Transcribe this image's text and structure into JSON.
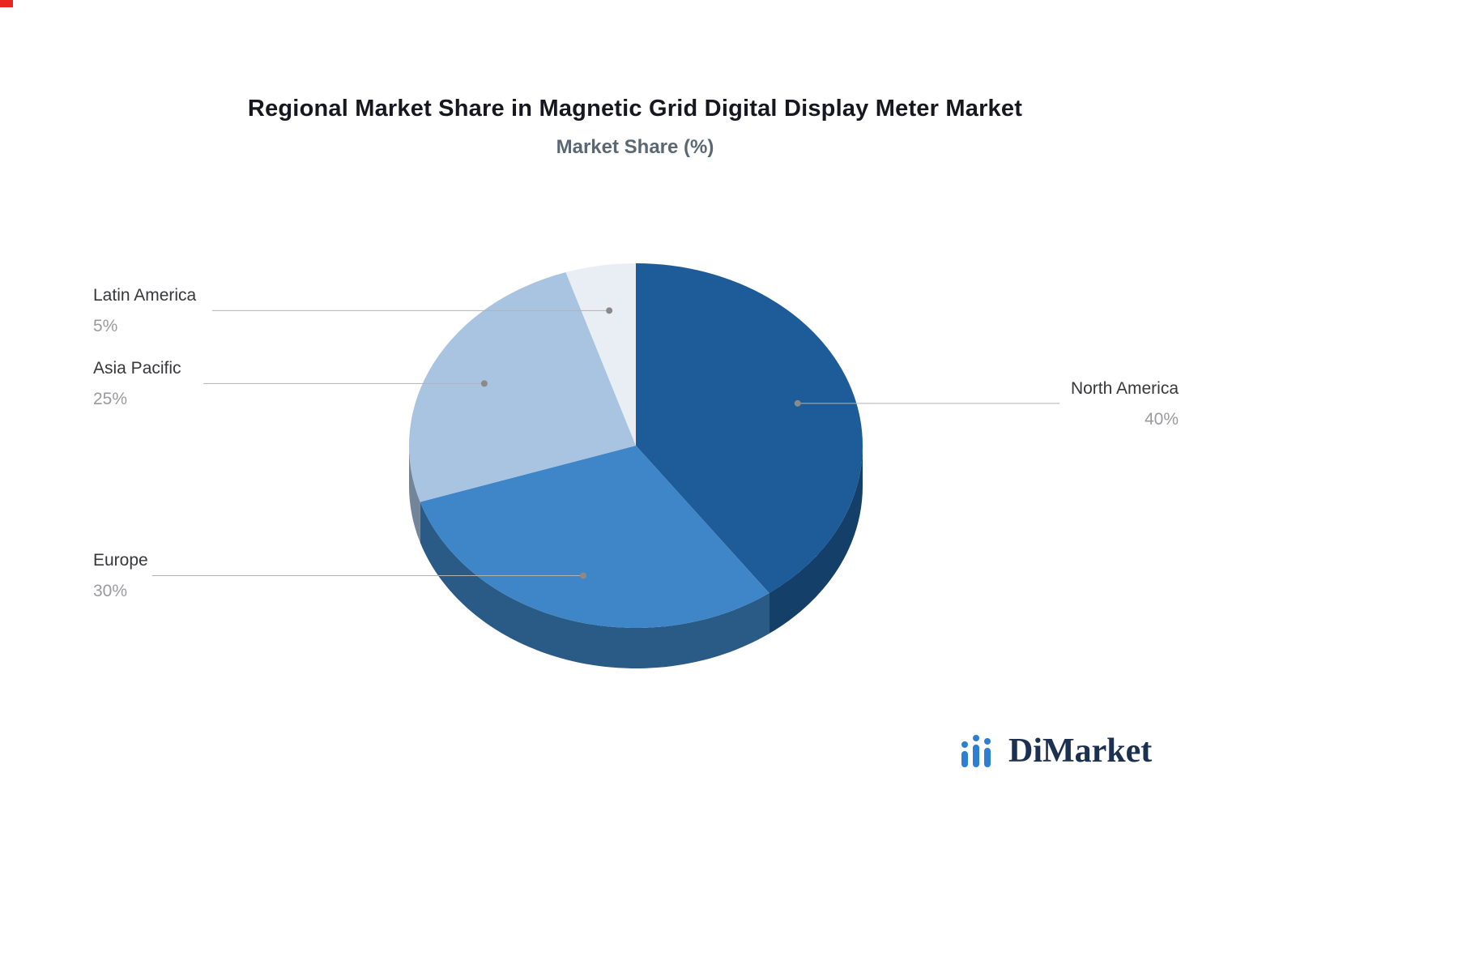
{
  "chart_data": {
    "type": "pie",
    "style": "3d",
    "title": "Regional Market Share in Magnetic Grid Digital Display Meter Market",
    "subtitle": "Market Share (%)",
    "unit": "%",
    "start_angle_deg": 0,
    "direction": "clockwise",
    "legend_position": "none (leader-line callout labels)",
    "slices": [
      {
        "label": "North America",
        "value": 40,
        "value_label": "40%",
        "color": "#1e5c99",
        "side": "right"
      },
      {
        "label": "Europe",
        "value": 30,
        "value_label": "30%",
        "color": "#3e86c7",
        "side": "left"
      },
      {
        "label": "Asia Pacific",
        "value": 25,
        "value_label": "25%",
        "color": "#a9c4e1",
        "side": "left"
      },
      {
        "label": "Latin America",
        "value": 5,
        "value_label": "5%",
        "color": "#e9eef5",
        "side": "left"
      }
    ],
    "callout_line_color": "#b3b3b3",
    "callout_dot_color": "#8a8a8a",
    "label_name_color": "#37383b",
    "label_value_color": "#9a9aa0"
  },
  "logo": {
    "text": "DiMarket",
    "icon": "bar-chart-logo-icon",
    "icon_color": "#2e7ed2",
    "text_color": "#1c3050"
  }
}
